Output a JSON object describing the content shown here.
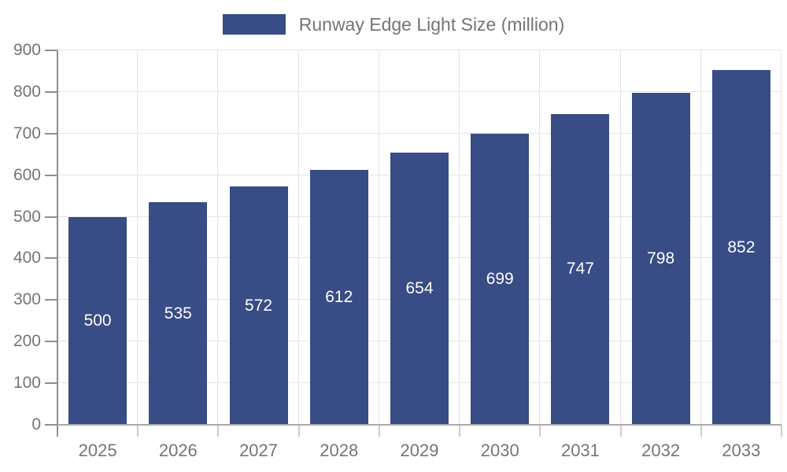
{
  "chart_data": {
    "type": "bar",
    "title": "",
    "legend": "Runway Edge Light Size (million)",
    "legend_position": "top",
    "categories": [
      "2025",
      "2026",
      "2027",
      "2028",
      "2029",
      "2030",
      "2031",
      "2032",
      "2033"
    ],
    "series": [
      {
        "name": "Runway Edge Light Size (million)",
        "values": [
          500,
          535,
          572,
          612,
          654,
          699,
          747,
          798,
          852
        ]
      }
    ],
    "xlabel": "",
    "ylabel": "",
    "ylim": [
      0,
      900
    ],
    "ytick_interval": 100,
    "ytick_labels": [
      "0",
      "100",
      "200",
      "300",
      "400",
      "500",
      "600",
      "700",
      "800",
      "900"
    ],
    "grid": true,
    "bar_value_labels_visible": true,
    "colors": {
      "bar_fill": "#384C85",
      "bar_value_label": "#ffffff",
      "axis_text": "#757575",
      "grid_line": "#e4e4e4",
      "axis_line": "#aaaaaa",
      "y_axis_line": "#8f8f8f",
      "boundary_tick": "#cccccc",
      "background": "#ffffff"
    }
  }
}
